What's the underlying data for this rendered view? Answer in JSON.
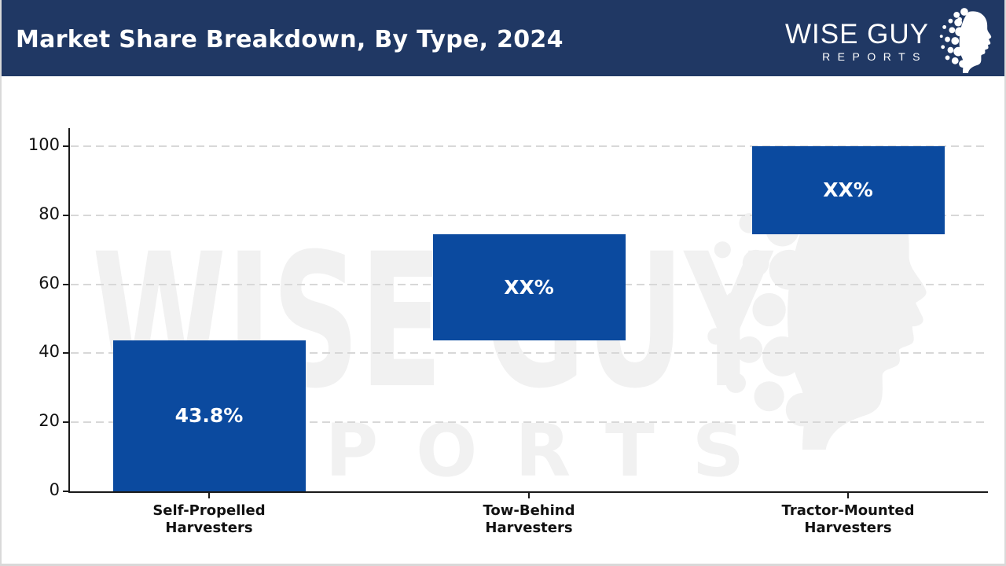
{
  "header": {
    "title": "Market Share Breakdown, By Type, 2024",
    "bg_color": "#203864",
    "logo": {
      "wordmark": "WISE GUY",
      "subtext": "REPORTS"
    }
  },
  "watermark": {
    "wordmark": "WISE GUY",
    "subtext": "REPORTS"
  },
  "chart_data": {
    "type": "bar",
    "variant": "waterfall-stacked-percentage",
    "title": "Market Share Breakdown, By Type, 2024",
    "categories": [
      {
        "line1": "Self-Propelled",
        "line2": "Harvesters"
      },
      {
        "line1": "Tow-Behind",
        "line2": "Harvesters"
      },
      {
        "line1": "Tractor-Mounted",
        "line2": "Harvesters"
      }
    ],
    "segments": [
      {
        "category": "Self-Propelled Harvesters",
        "start": 0,
        "end": 43.8,
        "label": "43.8%"
      },
      {
        "category": "Tow-Behind Harvesters",
        "start": 43.8,
        "end": 74.5,
        "label": "XX%"
      },
      {
        "category": "Tractor-Mounted Harvesters",
        "start": 74.5,
        "end": 100,
        "label": "XX%"
      }
    ],
    "ylim": [
      0,
      105
    ],
    "yticks": [
      0,
      20,
      40,
      60,
      80,
      100
    ],
    "xlabel": "",
    "ylabel": "",
    "grid": "horizontal-dashed",
    "legend": "none",
    "bar_color": "#0B4A9F",
    "bar_label_color": "#FFFFFF",
    "axis_color": "#1A1A1A",
    "grid_color": "#D8D8D8",
    "tick_label_color": "#111111",
    "watermark_color": "#F1F1F1"
  }
}
